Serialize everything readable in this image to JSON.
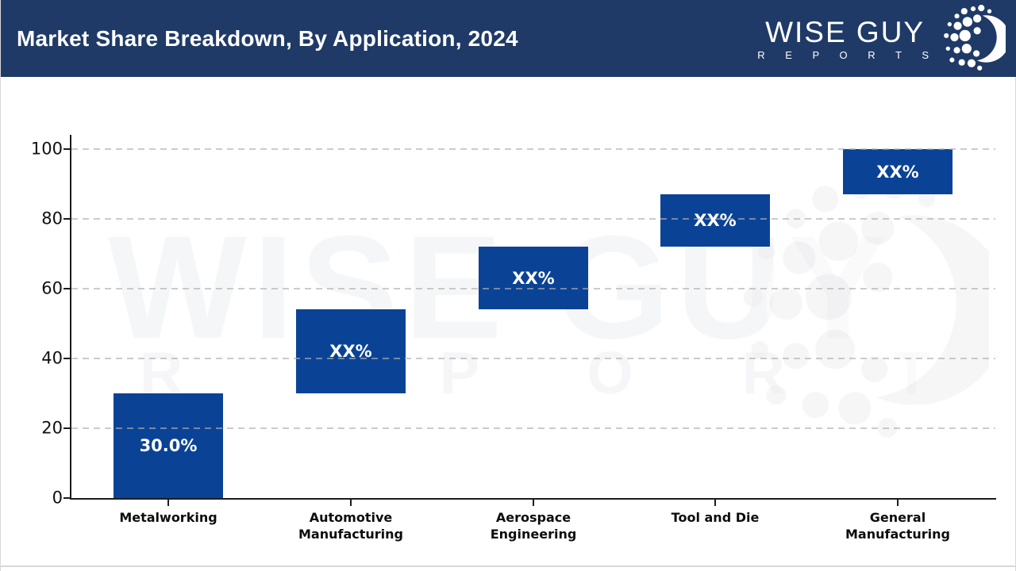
{
  "header": {
    "title": "Market Share Breakdown, By Application, 2024",
    "brand": {
      "line1": "WISE GUY",
      "line2": "R E P O R T S"
    }
  },
  "watermark": {
    "line1": "WISE GUY",
    "line2": "R E P O R T S"
  },
  "chart_data": {
    "type": "bar",
    "subtype": "floating-waterfall",
    "title": "Market Share Breakdown, By Application, 2024",
    "categories": [
      "Metalworking",
      "Automotive Manufacturing",
      "Aerospace Engineering",
      "Tool and Die",
      "General Manufacturing"
    ],
    "bars": [
      {
        "category": "Metalworking",
        "category_lines": [
          "Metalworking"
        ],
        "from": 0,
        "to": 30,
        "label": "30.0%"
      },
      {
        "category": "Automotive Manufacturing",
        "category_lines": [
          "Automotive",
          "Manufacturing"
        ],
        "from": 30,
        "to": 54,
        "label": "XX%"
      },
      {
        "category": "Aerospace Engineering",
        "category_lines": [
          "Aerospace",
          "Engineering"
        ],
        "from": 54,
        "to": 72,
        "label": "XX%"
      },
      {
        "category": "Tool and Die",
        "category_lines": [
          "Tool and Die"
        ],
        "from": 72,
        "to": 87,
        "label": "XX%"
      },
      {
        "category": "General Manufacturing",
        "category_lines": [
          "General",
          "Manufacturing"
        ],
        "from": 87,
        "to": 100,
        "label": "XX%"
      }
    ],
    "yticks": [
      0,
      20,
      40,
      60,
      80,
      100
    ],
    "ylim": [
      0,
      104
    ],
    "xlabel": "",
    "ylabel": "",
    "grid": {
      "axis": "y",
      "style": "dashed"
    },
    "legend": "none",
    "bar_color": "#0a4396",
    "value_label_color": "#ffffff",
    "header_color": "#1f3a67"
  }
}
